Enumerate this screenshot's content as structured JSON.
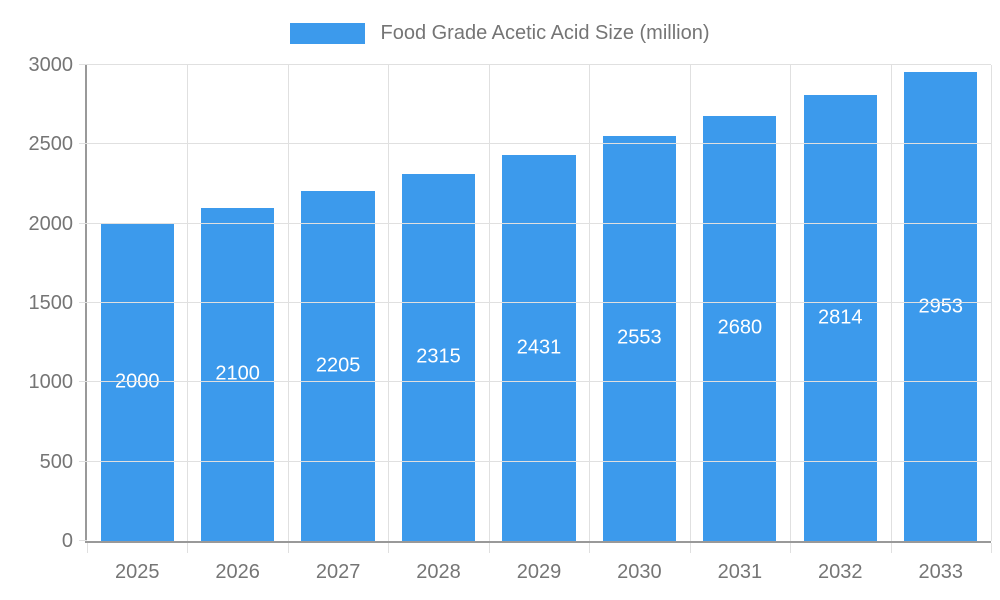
{
  "legend": {
    "label": "Food Grade Acetic Acid Size (million)"
  },
  "chart_data": {
    "type": "bar",
    "title": "Food Grade Acetic Acid Size (million)",
    "categories": [
      "2025",
      "2026",
      "2027",
      "2028",
      "2029",
      "2030",
      "2031",
      "2032",
      "2033"
    ],
    "values": [
      2000,
      2100,
      2205,
      2315,
      2431,
      2553,
      2680,
      2814,
      2953
    ],
    "xlabel": "",
    "ylabel": "",
    "ylim": [
      0,
      3000
    ],
    "yticks": [
      0,
      500,
      1000,
      1500,
      2000,
      2500,
      3000
    ],
    "grid": true,
    "legend_position": "top",
    "value_label_position": "inside-center",
    "colors": {
      "bar": "#3c9aec",
      "value_label": "#ffffff",
      "axis_line": "#999999",
      "grid_line": "#e0e0e0",
      "tick_text": "#757575",
      "legend_text": "#757575"
    }
  }
}
